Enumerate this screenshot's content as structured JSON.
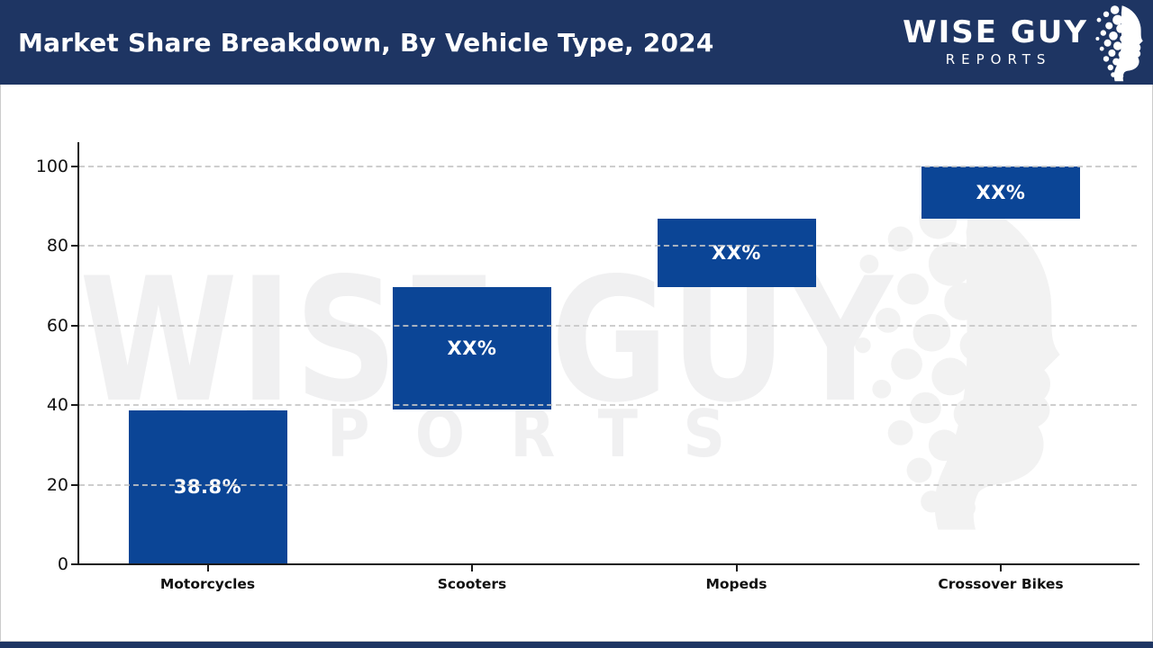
{
  "header": {
    "title": "Market Share Breakdown, By Vehicle Type, 2024",
    "bg_color": "#1e3563",
    "logo": {
      "line1": "WISE GUY",
      "line2": "REPORTS"
    }
  },
  "watermark": {
    "line1": "WISE GUY",
    "line2": "REPORTS"
  },
  "chart_data": {
    "type": "bar",
    "variant": "waterfall",
    "title": "Market Share Breakdown, By Vehicle Type, 2024",
    "categories": [
      "Motorcycles",
      "Scooters",
      "Mopeds",
      "Crossover Bikes"
    ],
    "segments": [
      {
        "category": "Motorcycles",
        "start": 0,
        "end": 38.8,
        "label": "38.8%"
      },
      {
        "category": "Scooters",
        "start": 38.8,
        "end": 69.7,
        "label": "XX%"
      },
      {
        "category": "Mopeds",
        "start": 69.7,
        "end": 86.9,
        "label": "XX%"
      },
      {
        "category": "Crossover Bikes",
        "start": 86.9,
        "end": 100,
        "label": "XX%"
      }
    ],
    "xlabel": "",
    "ylabel": "",
    "ylim": [
      0,
      100
    ],
    "yticks": [
      0,
      20,
      40,
      60,
      80,
      100
    ],
    "grid": "horizontal-dashed",
    "legend": "none",
    "bar_color": "#0b4596",
    "bar_label_color": "#ffffff"
  }
}
